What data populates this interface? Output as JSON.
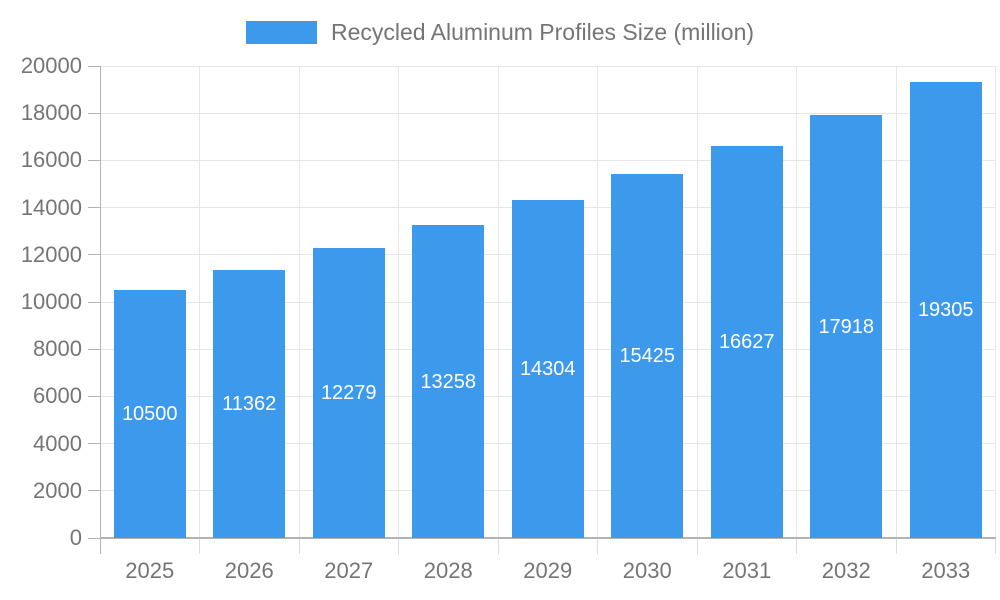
{
  "colors": {
    "bar": "#3C99EC",
    "grid": "#E6E6E6",
    "axis": "#B3B3B3",
    "tick_minor": "#DCDCDC",
    "axis_text": "#757575",
    "bar_label": "#FFFFFF",
    "background": "#FFFFFF"
  },
  "chart_data": {
    "type": "bar",
    "title": "",
    "legend_label": "Recycled Aluminum Profiles Size (million)",
    "legend_position": "top-center",
    "categories": [
      "2025",
      "2026",
      "2027",
      "2028",
      "2029",
      "2030",
      "2031",
      "2032",
      "2033"
    ],
    "series": [
      {
        "name": "Recycled Aluminum Profiles Size (million)",
        "color": "#3C99EC",
        "values": [
          10500,
          11362,
          12279,
          13258,
          14304,
          15425,
          16627,
          17918,
          19305
        ]
      }
    ],
    "xlabel": "",
    "ylabel": "",
    "ylim": [
      0,
      20000
    ],
    "y_ticks": [
      0,
      2000,
      4000,
      6000,
      8000,
      10000,
      12000,
      14000,
      16000,
      18000,
      20000
    ],
    "grid": true,
    "bar_value_labels": "inside-middle"
  }
}
